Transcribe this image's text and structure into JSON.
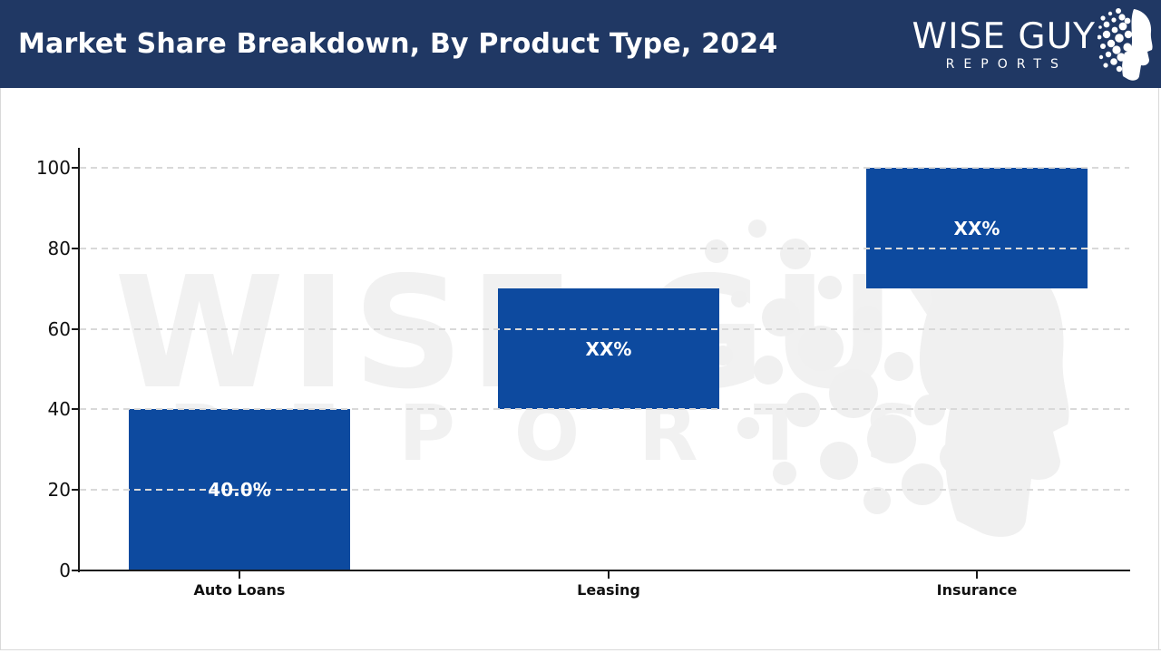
{
  "header": {
    "title": "Market Share Breakdown, By Product Type, 2024",
    "logo": {
      "line1": "WISE GUY",
      "line2": "REPORTS"
    }
  },
  "watermark": {
    "line1": "WISE GUY",
    "line2": "REPORTS"
  },
  "colors": {
    "header_bg": "#203864",
    "bar": "#0d4a9f",
    "bar_label": "#ffffff",
    "grid": "#d9d9d9",
    "axis": "#1a1a1a",
    "tick_label": "#111111",
    "watermark": "#f1f1f1"
  },
  "chart_data": {
    "type": "bar",
    "subtype": "waterfall",
    "title": "Market Share Breakdown, By Product Type, 2024",
    "categories": [
      "Auto Loans",
      "Leasing",
      "Insurance"
    ],
    "segments": [
      {
        "category": "Auto Loans",
        "start": 0,
        "end": 40,
        "label": "40.0%"
      },
      {
        "category": "Leasing",
        "start": 40,
        "end": 70,
        "label": "XX%"
      },
      {
        "category": "Insurance",
        "start": 70,
        "end": 100,
        "label": "XX%"
      }
    ],
    "xlabel": "",
    "ylabel": "",
    "ylim": [
      0,
      100
    ],
    "yticks": [
      0,
      20,
      40,
      60,
      80,
      100
    ],
    "grid": "horizontal-dashed",
    "legend": "none"
  }
}
